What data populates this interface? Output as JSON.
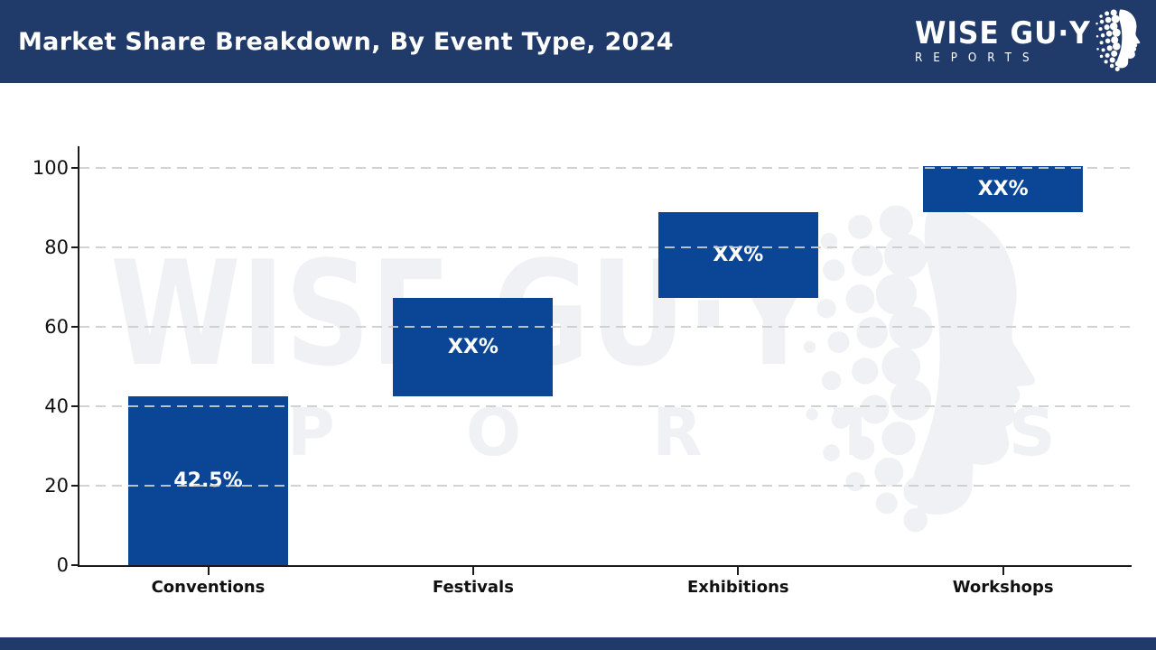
{
  "header": {
    "title": "Market Share Breakdown, By Event Type, 2024",
    "logo": {
      "line1": "WISE GU·Y",
      "line2": "REPORTS"
    }
  },
  "watermark": {
    "line1": "WISE GU·Y",
    "line2": "P O R T S"
  },
  "colors": {
    "header_bg": "#203a69",
    "footer_bg": "#203a69",
    "bar_blue": "#0b4596",
    "axis": "#1a1a1a",
    "watermark_gray": "#eff1f5"
  },
  "chart_data": {
    "type": "bar",
    "subtype": "waterfall",
    "title": "",
    "xlabel": "",
    "ylabel": "",
    "categories": [
      "Conventions",
      "Festivals",
      "Exhibitions",
      "Workshops"
    ],
    "segments": [
      {
        "category": "Conventions",
        "start": 0,
        "end": 42.5,
        "label": "42.5%"
      },
      {
        "category": "Festivals",
        "start": 42.5,
        "end": 67.3,
        "label": "XX%"
      },
      {
        "category": "Exhibitions",
        "start": 67.3,
        "end": 88.9,
        "label": "XX%"
      },
      {
        "category": "Workshops",
        "start": 88.9,
        "end": 100.5,
        "label": "XX%"
      }
    ],
    "yticks": [
      0,
      20,
      40,
      60,
      80,
      100
    ],
    "ylim": [
      0,
      105
    ],
    "grid": "horizontal dashed, drawn over bars",
    "legend": "none"
  }
}
